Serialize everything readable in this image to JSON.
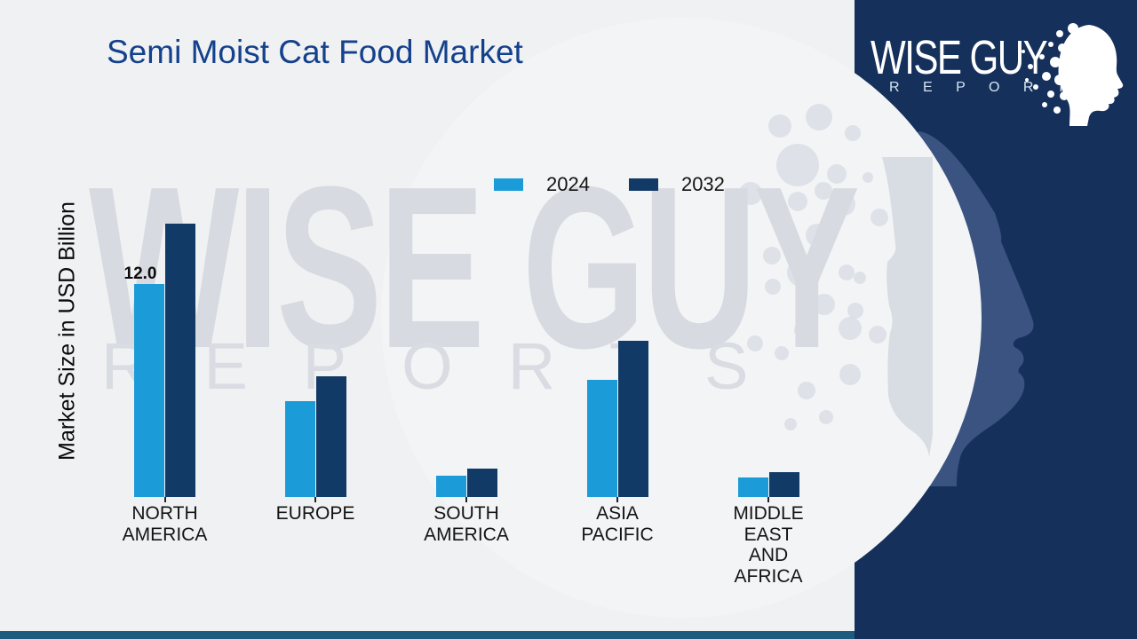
{
  "page": {
    "title": "Semi Moist Cat Food Market"
  },
  "colors": {
    "background": "#f0f1f3",
    "accent_blue": "#1b9cd8",
    "accent_navy": "#123a66",
    "panel_navy": "#16305c",
    "teal_bar": "#1d5c7e",
    "face_silhouette": "#3a5380",
    "title_blue": "#14418c",
    "watermark_gray": "#d7dae0"
  },
  "icons": {
    "logo_head": "head-profile-dots-icon",
    "background_head": "head-silhouette",
    "brain_dots": "dot-cluster"
  },
  "watermark": {
    "line1": "WISE GUY",
    "line2": "REPORTS"
  },
  "logo": {
    "line1": "WISE GUY",
    "line2": "R E P O R T S"
  },
  "chart_data": {
    "type": "bar",
    "title": "Semi Moist Cat Food Market",
    "xlabel": "",
    "ylabel": "Market Size in USD Billion",
    "unit": "USD Billion",
    "categories": [
      "NORTH AMERICA",
      "EUROPE",
      "SOUTH AMERICA",
      "ASIA PACIFIC",
      "MIDDLE EAST AND AFRICA"
    ],
    "series": [
      {
        "name": "2024",
        "color": "#1b9cd8",
        "values": [
          12.0,
          5.4,
          1.2,
          6.6,
          1.1
        ]
      },
      {
        "name": "2032",
        "color": "#123a66",
        "values": [
          15.4,
          6.8,
          1.6,
          8.8,
          1.4
        ]
      }
    ],
    "data_label": {
      "text": "12.0",
      "series_index": 0,
      "category_index": 0
    },
    "ylim": [
      0,
      16
    ],
    "grid": false,
    "legend_position": "top-center"
  }
}
